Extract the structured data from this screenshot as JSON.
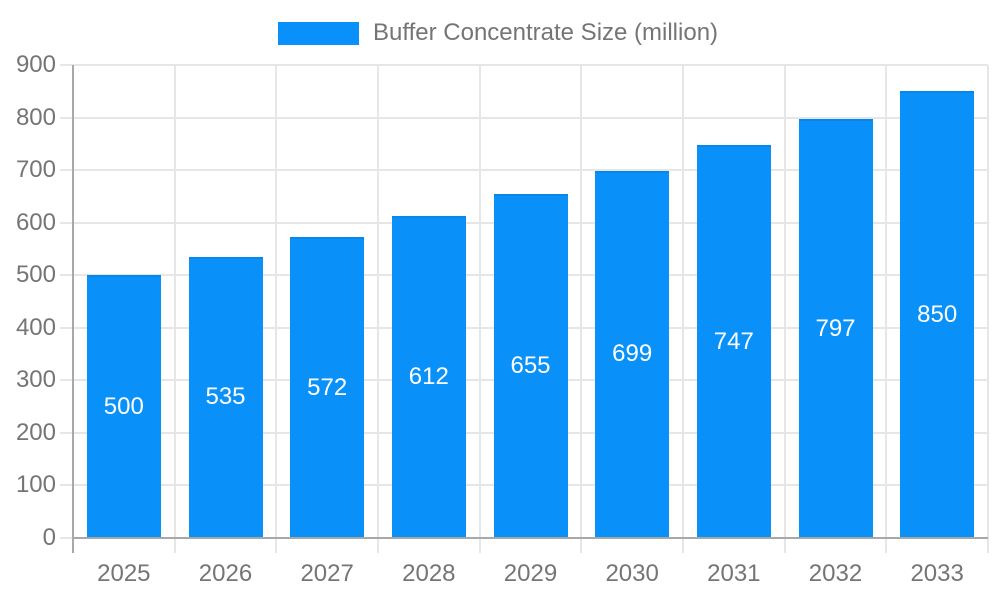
{
  "chart_data": {
    "type": "bar",
    "title": "Buffer Concentrate Size (million)",
    "legend_entries": [
      "Buffer Concentrate Size (million)"
    ],
    "legend_position": "top-center",
    "categories": [
      "2025",
      "2026",
      "2027",
      "2028",
      "2029",
      "2030",
      "2031",
      "2032",
      "2033"
    ],
    "series": [
      {
        "name": "Buffer Concentrate Size (million)",
        "values": [
          500,
          535,
          572,
          612,
          655,
          699,
          747,
          797,
          850
        ]
      }
    ],
    "value_labels": [
      500,
      535,
      572,
      612,
      655,
      699,
      747,
      797,
      850
    ],
    "value_label_position": "inside-center",
    "xlabel": "",
    "ylabel": "",
    "ylim": [
      0,
      900
    ],
    "ytick_step": 100,
    "yticks": [
      0,
      100,
      200,
      300,
      400,
      500,
      600,
      700,
      800,
      900
    ],
    "grid": true,
    "colors": {
      "bar": "#0991f9",
      "bar_border": "#0787ea",
      "grid": "#e6e6e6",
      "axis": "#a8a8a8",
      "tick_label": "#757575",
      "legend_text": "#757575",
      "value_label": "#ffffff",
      "background": "#ffffff"
    }
  }
}
